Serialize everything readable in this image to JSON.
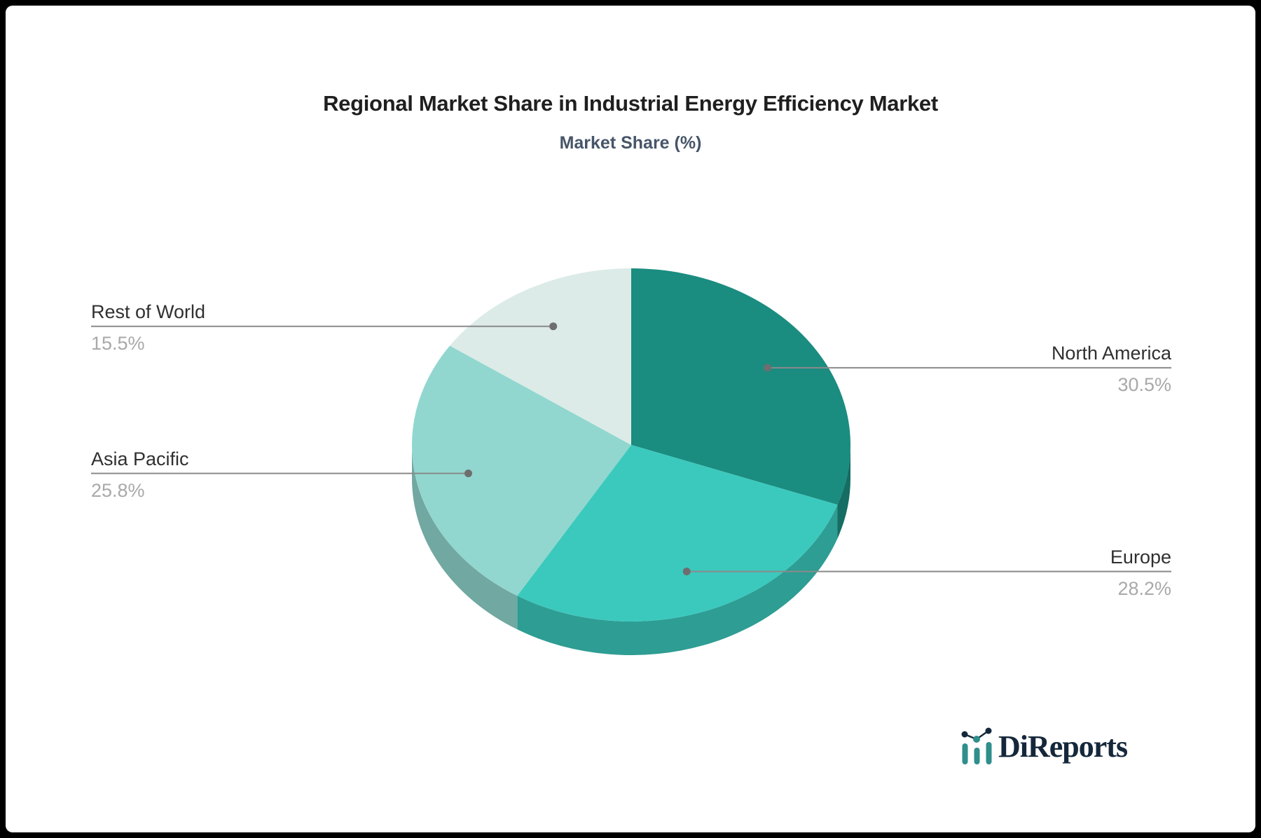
{
  "page": {
    "background": "#ffffff",
    "frame_color": "#000000"
  },
  "chart_data": {
    "type": "pie",
    "title": "Regional Market Share in Industrial Energy Efficiency Market",
    "subtitle": "Market Share (%)",
    "three_d": true,
    "start_angle_deg": 0,
    "direction": "clockwise",
    "slices": [
      {
        "label": "North America",
        "value": 30.5,
        "display": "30.5%",
        "color": "#1b8c80",
        "side_color": "#156d63"
      },
      {
        "label": "Europe",
        "value": 28.2,
        "display": "28.2%",
        "color": "#3bc9bd",
        "side_color": "#2e9d93"
      },
      {
        "label": "Asia Pacific",
        "value": 25.8,
        "display": "25.8%",
        "color": "#91d7cf",
        "side_color": "#71a8a1"
      },
      {
        "label": "Rest of World",
        "value": 15.5,
        "display": "15.5%",
        "color": "#dcebe7",
        "side_color": "#adc7c1"
      }
    ],
    "labels_style": {
      "name_color": "#303030",
      "value_color": "#a9a9a9",
      "connector_color": "#8a8a8a",
      "dot_color": "#6e6e6e"
    }
  },
  "branding": {
    "logo_text": "DiReports",
    "logo_color": "#15273b",
    "logo_icon": "bar-chart-trend-icon",
    "logo_icon_teal": "#2f8f8b"
  }
}
